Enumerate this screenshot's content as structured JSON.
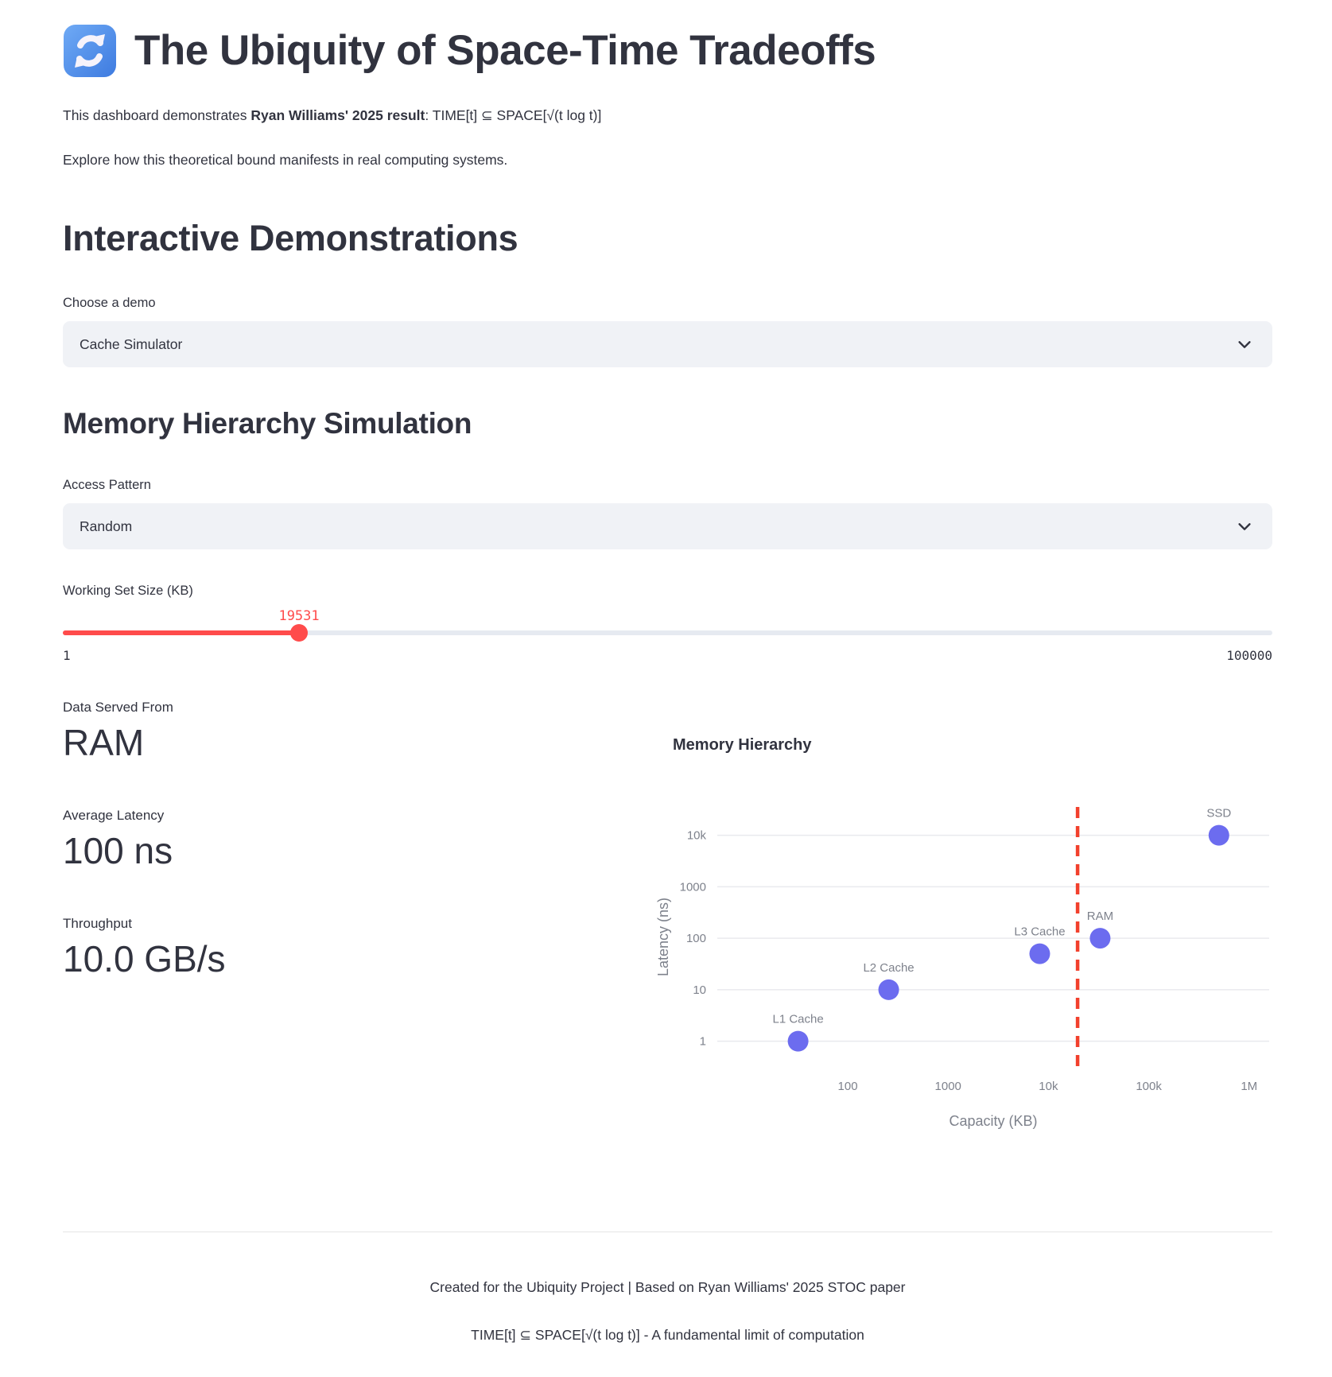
{
  "header": {
    "title": "The Ubiquity of Space-Time Tradeoffs",
    "icon": "blue rounded square with white counterclockwise refresh arrows",
    "icon_color": "#4B8BF0"
  },
  "intro": {
    "line1_prefix": "This dashboard demonstrates ",
    "line1_bold": "Ryan Williams' 2025 result",
    "line1_suffix": ": TIME[t] ⊆ SPACE[√(t log t)]",
    "line2": "Explore how this theoretical bound manifests in real computing systems."
  },
  "demos": {
    "heading": "Interactive Demonstrations",
    "choose_label": "Choose a demo",
    "selected_demo": "Cache Simulator"
  },
  "simulation": {
    "heading": "Memory Hierarchy Simulation",
    "access_pattern_label": "Access Pattern",
    "access_pattern_value": "Random",
    "slider": {
      "label": "Working Set Size (KB)",
      "value": "19531",
      "min": "1",
      "max": "100000",
      "percent": 19.53,
      "accent_color": "#FF4B4B"
    }
  },
  "metrics": [
    {
      "label": "Data Served From",
      "value": "RAM"
    },
    {
      "label": "Average Latency",
      "value": "100 ns"
    },
    {
      "label": "Throughput",
      "value": "10.0 GB/s"
    }
  ],
  "chart_data": {
    "type": "scatter",
    "title": "Memory Hierarchy",
    "xlabel": "Capacity (KB)",
    "ylabel": "Latency (ns)",
    "x_scale": "log",
    "y_scale": "log",
    "grid": "horizontal-only",
    "legend": false,
    "marker_color": "#6C6CEF",
    "marker_radius": 13,
    "x_ticks": [
      {
        "label": "100",
        "value": 100
      },
      {
        "label": "1000",
        "value": 1000
      },
      {
        "label": "10k",
        "value": 10000
      },
      {
        "label": "100k",
        "value": 100000
      },
      {
        "label": "1M",
        "value": 1000000
      }
    ],
    "y_ticks": [
      {
        "label": "1",
        "value": 1
      },
      {
        "label": "10",
        "value": 10
      },
      {
        "label": "100",
        "value": 100
      },
      {
        "label": "1000",
        "value": 1000
      },
      {
        "label": "10k",
        "value": 10000
      }
    ],
    "x_range_log10": [
      0.7,
      6.2
    ],
    "y_range_log10": [
      -0.5,
      4.55
    ],
    "points": [
      {
        "label": "L1 Cache",
        "capacity_kb": 32,
        "latency_ns": 1
      },
      {
        "label": "L2 Cache",
        "capacity_kb": 256,
        "latency_ns": 10
      },
      {
        "label": "L3 Cache",
        "capacity_kb": 8192,
        "latency_ns": 50
      },
      {
        "label": "RAM",
        "capacity_kb": 32768,
        "latency_ns": 100
      },
      {
        "label": "SSD",
        "capacity_kb": 500000,
        "latency_ns": 10000
      }
    ],
    "vline": {
      "x": 19531,
      "style": "dashed",
      "color": "#F2402C",
      "meaning": "current working set size"
    }
  },
  "footer": {
    "line1": "Created for the Ubiquity Project | Based on Ryan Williams' 2025 STOC paper",
    "line2": "TIME[t] ⊆ SPACE[√(t log t)] - A fundamental limit of computation"
  }
}
